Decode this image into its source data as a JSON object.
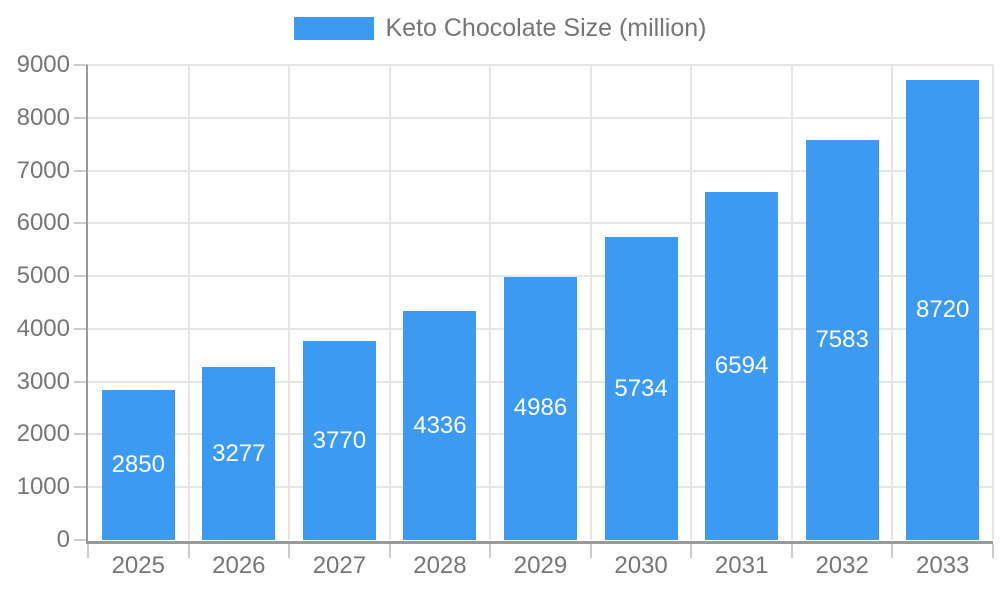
{
  "chart_data": {
    "type": "bar",
    "title": "Keto Chocolate Size (million)",
    "legend": {
      "position": "top",
      "label": "Keto Chocolate Size (million)"
    },
    "categories": [
      "2025",
      "2026",
      "2027",
      "2028",
      "2029",
      "2030",
      "2031",
      "2032",
      "2033"
    ],
    "series": [
      {
        "name": "Keto Chocolate Size (million)",
        "values": [
          2850,
          3277,
          3770,
          4336,
          4986,
          5734,
          6594,
          7583,
          8720
        ]
      }
    ],
    "xlabel": "",
    "ylabel": "",
    "ylim": [
      0,
      9000
    ],
    "ytick_step": 1000,
    "grid": true,
    "bar_labels_visible": true,
    "colors": {
      "bar": "#3C9BF0",
      "bar_label": "#ffffff",
      "axis_label": "#757575",
      "legend_label": "#757575",
      "gridline": "#e6e6e6",
      "tick": "#cccccc",
      "axis_line": "#999999",
      "background": "#ffffff"
    }
  }
}
